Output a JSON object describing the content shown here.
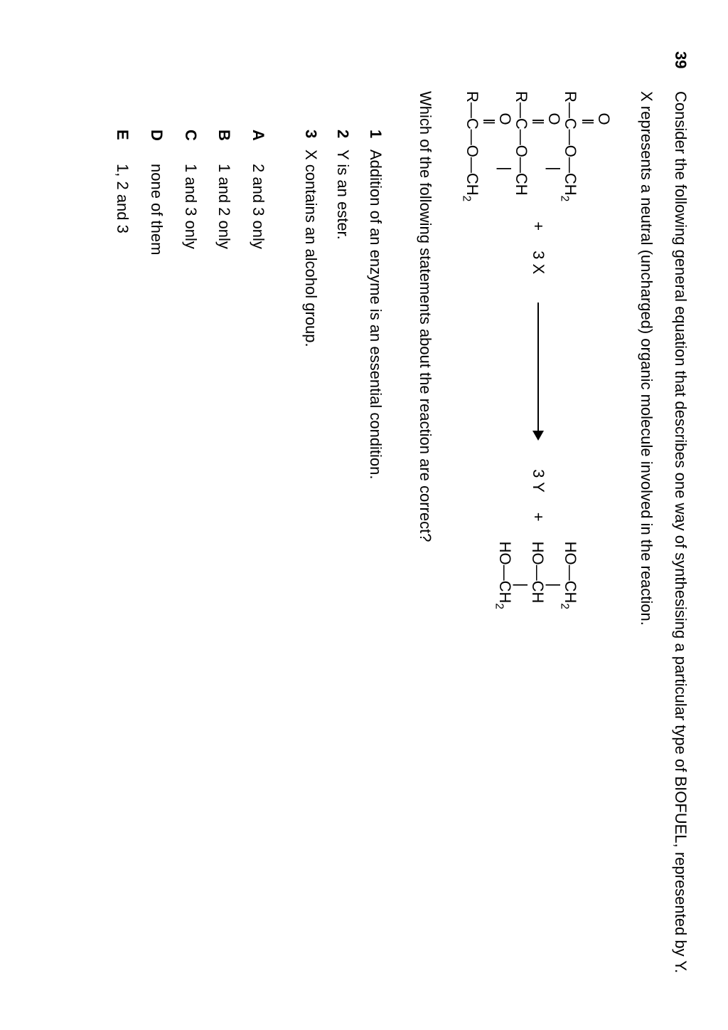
{
  "question_number": "39",
  "intro_line1": "Consider the following general equation that describes one way of synthesising a particular type of BIOFUEL, represented by Y.",
  "intro_line2": "X represents a neutral (uncharged) organic molecule involved in the reaction.",
  "eq": {
    "plus1": "+",
    "threex": "3 X",
    "threey": "3 Y",
    "plus2": "+"
  },
  "prompt": "Which of the following statements about the reaction are correct?",
  "statements": [
    {
      "n": "1",
      "text": "Addition of an enzyme is an essential condition."
    },
    {
      "n": "2",
      "text": "Y is an ester."
    },
    {
      "n": "3",
      "text": "X contains an alcohol group."
    }
  ],
  "options": [
    {
      "letter": "A",
      "text": "2 and 3 only"
    },
    {
      "letter": "B",
      "text": "1 and 2 only"
    },
    {
      "letter": "C",
      "text": "1 and 3 only"
    },
    {
      "letter": "D",
      "text": "none of them"
    },
    {
      "letter": "E",
      "text": "1, 2 and 3"
    }
  ],
  "colors": {
    "page_bg": "#ffffff",
    "text": "#000000",
    "outer_bg": "#000000"
  },
  "fontsize_pt": 16
}
